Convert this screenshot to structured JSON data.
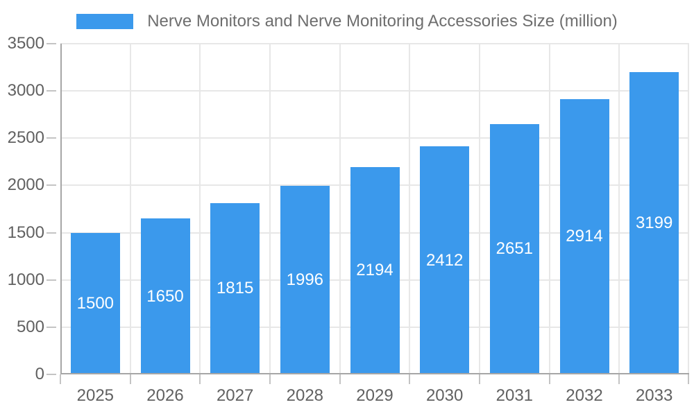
{
  "chart_data": {
    "type": "bar",
    "title": "Nerve Monitors and Nerve Monitoring Accessories Size (million)",
    "legend": [
      "Nerve Monitors and Nerve Monitoring Accessories Size (million)"
    ],
    "legend_position": "top",
    "categories": [
      "2025",
      "2026",
      "2027",
      "2028",
      "2029",
      "2030",
      "2031",
      "2032",
      "2033"
    ],
    "values": [
      1500,
      1650,
      1815,
      1996,
      2194,
      2412,
      2651,
      2914,
      3199
    ],
    "xlabel": "",
    "ylabel": "",
    "ylim": [
      0,
      3500
    ],
    "ytick_step": 500,
    "yticks": [
      "0",
      "500",
      "1000",
      "1500",
      "2000",
      "2500",
      "3000",
      "3500"
    ],
    "grid": true,
    "value_labels": "inside-center",
    "colors": {
      "background": "#FFFFFF",
      "bar": "#3B99EC",
      "grid": "#E7E7E7",
      "axis": "#A6A6A6",
      "tick": "#C4C4C4",
      "axis_label": "#616161",
      "legend_label": "#6E6E6E",
      "value_label": "#FFFFFF"
    }
  }
}
